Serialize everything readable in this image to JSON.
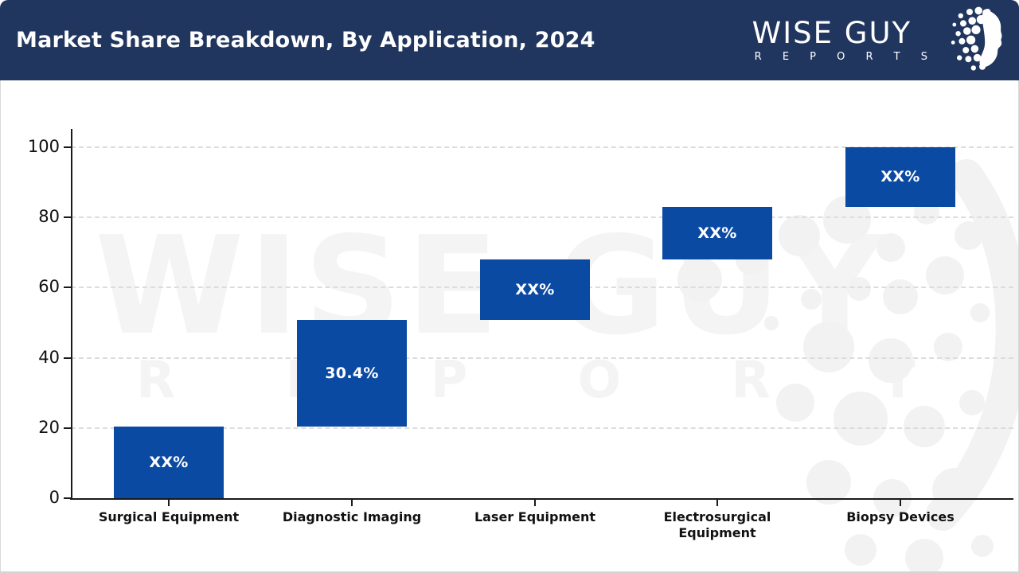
{
  "header": {
    "title": "Market Share Breakdown, By Application, 2024",
    "logo": {
      "wordmark": "WISE GUY",
      "subtext": "R E P O R T S"
    }
  },
  "watermark": {
    "line1": "WISE GUY",
    "line2": "R E P O R T S"
  },
  "colors": {
    "header_bg": "#21365F",
    "bar_blue": "#0B4AA2",
    "grid_gray": "#DCDCDC",
    "axis_black": "#1a1a1a",
    "bar_label_white": "#FFFFFF",
    "watermark_gray": "#F4F4F4"
  },
  "chart_data": {
    "type": "bar",
    "subtype": "waterfall",
    "title": "Market Share Breakdown, By Application, 2024",
    "xlabel": "",
    "ylabel": "",
    "categories": [
      "Surgical Equipment",
      "Diagnostic Imaging",
      "Laser Equipment",
      "Electrosurgical Equipment",
      "Biopsy Devices"
    ],
    "segments": [
      {
        "category": "Surgical Equipment",
        "start": 0,
        "end": 20.3,
        "value": 20.3,
        "label": "XX%"
      },
      {
        "category": "Diagnostic Imaging",
        "start": 20.3,
        "end": 50.7,
        "value": 30.4,
        "label": "30.4%"
      },
      {
        "category": "Laser Equipment",
        "start": 50.7,
        "end": 68.0,
        "value": 17.3,
        "label": "XX%"
      },
      {
        "category": "Electrosurgical Equipment",
        "start": 68.0,
        "end": 83.0,
        "value": 15.0,
        "label": "XX%"
      },
      {
        "category": "Biopsy Devices",
        "start": 83.0,
        "end": 100.0,
        "value": 17.0,
        "label": "XX%"
      }
    ],
    "yticks": [
      0,
      20,
      40,
      60,
      80,
      100
    ],
    "ylim": [
      0,
      105
    ],
    "grid": "horizontal-dashed",
    "legend": "none",
    "bar_color": "#0B4AA2"
  }
}
